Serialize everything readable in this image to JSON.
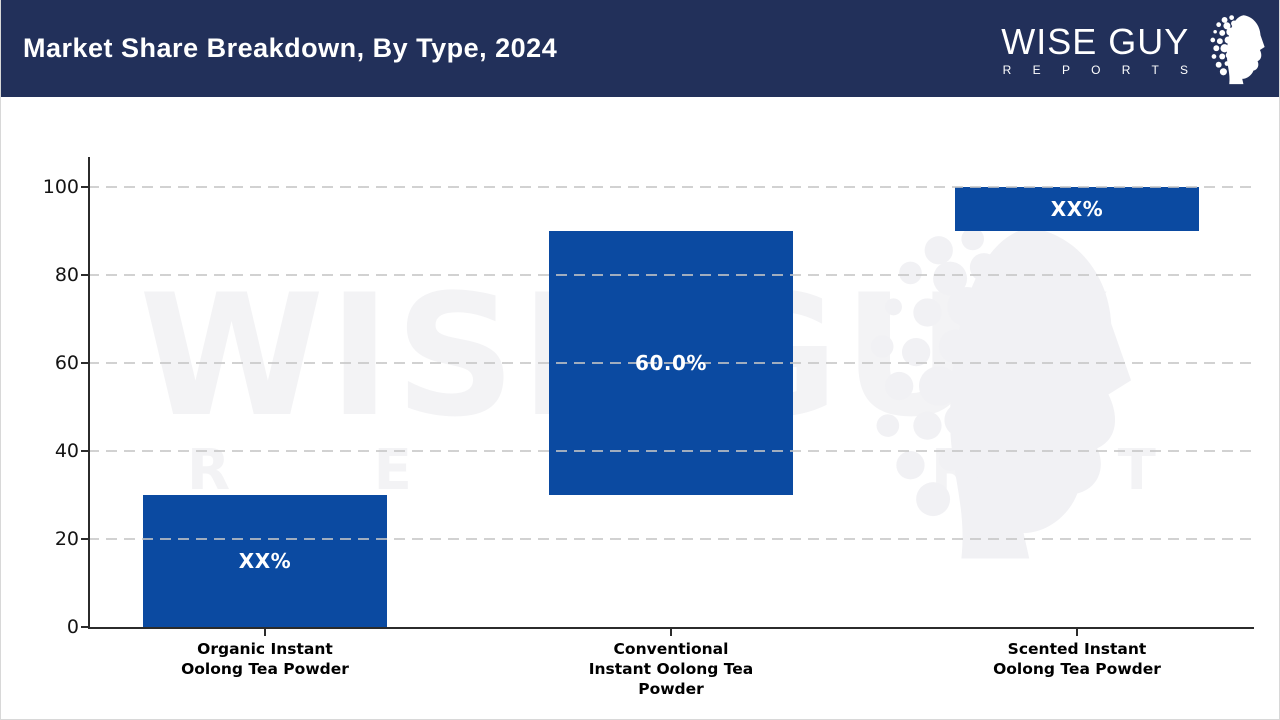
{
  "header": {
    "title": "Market Share Breakdown, By Type, 2024",
    "logo": {
      "line1": "WISE GUY",
      "line2": "R E P O R T S",
      "mark": "dotted-head-profile-icon"
    }
  },
  "watermark": {
    "line1": "WISE GUY",
    "line2": "R E P O R T S",
    "mark": "dotted-head-profile-icon"
  },
  "colors": {
    "header_bg": "#22305a",
    "bar": "#0b4aa1",
    "bar_label": "#ffffff",
    "axis": "#2b2b2b",
    "grid": "#c6c6c6",
    "tick_text": "#141414",
    "watermark": "#f3f3f5"
  },
  "chart_data": {
    "type": "bar",
    "subtype": "floating-segment-bars",
    "title": "Market Share Breakdown, By Type, 2024",
    "xlabel": "",
    "ylabel": "",
    "yticks": [
      0,
      20,
      40,
      60,
      80,
      100
    ],
    "ylim": [
      0,
      107
    ],
    "grid": "horizontal-dashed-above-bars",
    "legend": "none",
    "categories": [
      "Organic Instant\nOolong Tea Powder",
      "Conventional\nInstant Oolong Tea\nPowder",
      "Scented Instant\nOolong Tea Powder"
    ],
    "bars": [
      {
        "start": 0,
        "end": 30,
        "label": "XX%"
      },
      {
        "start": 30,
        "end": 90,
        "label": "60.0%"
      },
      {
        "start": 90,
        "end": 100,
        "label": "XX%"
      }
    ]
  }
}
